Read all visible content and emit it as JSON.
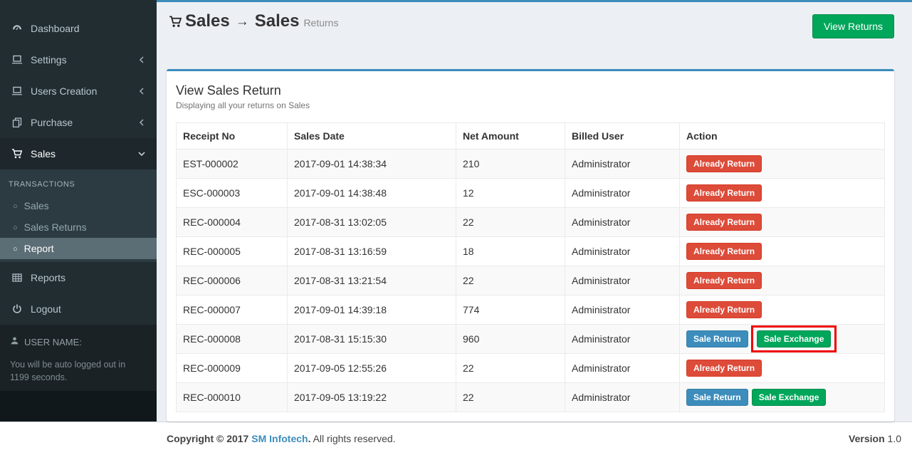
{
  "sidebar": {
    "items": [
      {
        "label": "Dashboard"
      },
      {
        "label": "Settings"
      },
      {
        "label": "Users Creation"
      },
      {
        "label": "Purchase"
      },
      {
        "label": "Sales"
      }
    ],
    "section_header": "TRANSACTIONS",
    "sub_items": [
      {
        "label": "Sales"
      },
      {
        "label": "Sales Returns"
      },
      {
        "label": "Report"
      }
    ],
    "bottom_items": [
      {
        "label": "Reports"
      },
      {
        "label": "Logout"
      }
    ],
    "user_label": "USER NAME:",
    "logout_notice": "You will be auto logged out in 1199 seconds."
  },
  "header": {
    "breadcrumb_primary": "Sales",
    "breadcrumb_secondary": "Sales",
    "breadcrumb_tertiary": "Returns",
    "view_returns_button": "View Returns"
  },
  "panel": {
    "title": "View Sales Return",
    "subtitle": "Displaying all your returns on Sales"
  },
  "table": {
    "columns": [
      "Receipt No",
      "Sales Date",
      "Net Amount",
      "Billed User",
      "Action"
    ],
    "rows": [
      {
        "receipt_no": "EST-000002",
        "sales_date": "2017-09-01 14:38:34",
        "net_amount": "210",
        "billed_user": "Administrator",
        "actions": [
          {
            "label": "Already Return",
            "style": "danger"
          }
        ]
      },
      {
        "receipt_no": "ESC-000003",
        "sales_date": "2017-09-01 14:38:48",
        "net_amount": "12",
        "billed_user": "Administrator",
        "actions": [
          {
            "label": "Already Return",
            "style": "danger"
          }
        ]
      },
      {
        "receipt_no": "REC-000004",
        "sales_date": "2017-08-31 13:02:05",
        "net_amount": "22",
        "billed_user": "Administrator",
        "actions": [
          {
            "label": "Already Return",
            "style": "danger"
          }
        ]
      },
      {
        "receipt_no": "REC-000005",
        "sales_date": "2017-08-31 13:16:59",
        "net_amount": "18",
        "billed_user": "Administrator",
        "actions": [
          {
            "label": "Already Return",
            "style": "danger"
          }
        ]
      },
      {
        "receipt_no": "REC-000006",
        "sales_date": "2017-08-31 13:21:54",
        "net_amount": "22",
        "billed_user": "Administrator",
        "actions": [
          {
            "label": "Already Return",
            "style": "danger"
          }
        ]
      },
      {
        "receipt_no": "REC-000007",
        "sales_date": "2017-09-01 14:39:18",
        "net_amount": "774",
        "billed_user": "Administrator",
        "actions": [
          {
            "label": "Already Return",
            "style": "danger"
          }
        ]
      },
      {
        "receipt_no": "REC-000008",
        "sales_date": "2017-08-31 15:15:30",
        "net_amount": "960",
        "billed_user": "Administrator",
        "actions": [
          {
            "label": "Sale Return",
            "style": "primary"
          },
          {
            "label": "Sale Exchange",
            "style": "success",
            "annotated": true
          }
        ]
      },
      {
        "receipt_no": "REC-000009",
        "sales_date": "2017-09-05 12:55:26",
        "net_amount": "22",
        "billed_user": "Administrator",
        "actions": [
          {
            "label": "Already Return",
            "style": "danger"
          }
        ]
      },
      {
        "receipt_no": "REC-000010",
        "sales_date": "2017-09-05 13:19:22",
        "net_amount": "22",
        "billed_user": "Administrator",
        "actions": [
          {
            "label": "Sale Return",
            "style": "primary"
          },
          {
            "label": "Sale Exchange",
            "style": "success"
          }
        ]
      }
    ]
  },
  "footer": {
    "copyright_prefix": "Copyright © 2017",
    "company": "SM Infotech",
    "copyright_suffix": "All rights reserved.",
    "version_label": "Version",
    "version_value": "1.0"
  },
  "colors": {
    "accent_blue": "#3c8dbc",
    "button_green": "#00a65a",
    "button_red": "#dd4b39",
    "annotation_red": "#ee0000"
  }
}
